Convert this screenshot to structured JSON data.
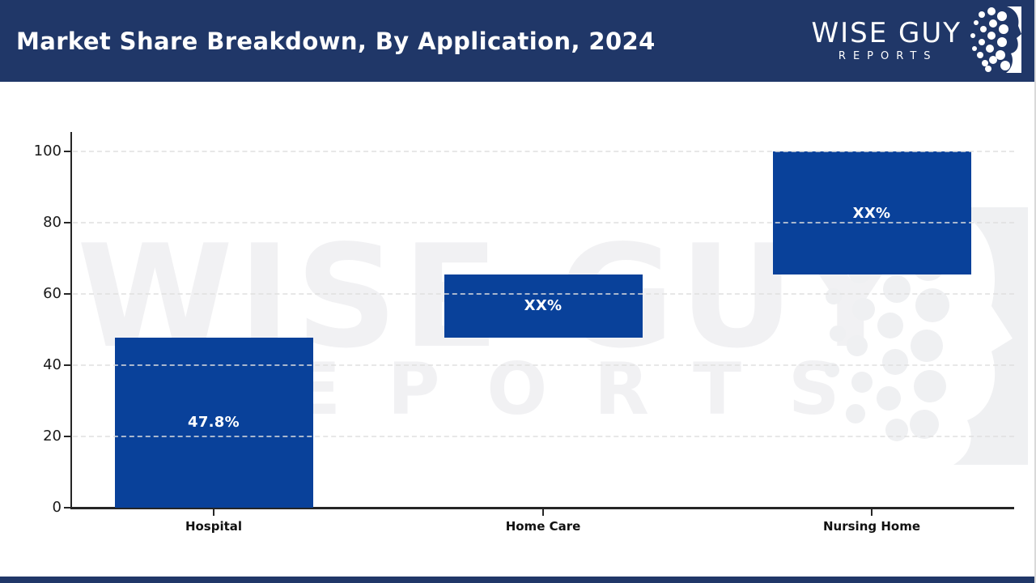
{
  "header": {
    "title": "Market Share Breakdown, By Application, 2024",
    "logo": {
      "line1": "WISE GUY",
      "line2": "REPORTS"
    }
  },
  "watermark": {
    "line1": "WISE GUY",
    "line2": "REPORTS"
  },
  "colors": {
    "header_bg": "#203768",
    "footer_bg": "#203768",
    "bar": "#09419a",
    "bar_label": "#ffffff",
    "axis": "#262626",
    "tick_label": "#1a1a1a",
    "gridline": "#e0e0e0",
    "watermark": "#f1f1f3",
    "title_text": "#ffffff"
  },
  "chart_data": {
    "type": "bar",
    "subtype": "waterfall",
    "title": "Market Share Breakdown, By Application, 2024",
    "categories": [
      "Hospital",
      "Home Care",
      "Nursing Home"
    ],
    "segments": [
      {
        "category": "Hospital",
        "start": 0,
        "end": 47.8,
        "label": "47.8%"
      },
      {
        "category": "Home Care",
        "start": 47.8,
        "end": 65.4,
        "label": "XX%"
      },
      {
        "category": "Nursing Home",
        "start": 65.4,
        "end": 100,
        "label": "XX%"
      }
    ],
    "xlabel": "",
    "ylabel": "",
    "ylim": [
      0,
      105
    ],
    "yticks": [
      0,
      20,
      40,
      60,
      80,
      100
    ],
    "grid": "horizontal-dashed",
    "legend": "none"
  }
}
